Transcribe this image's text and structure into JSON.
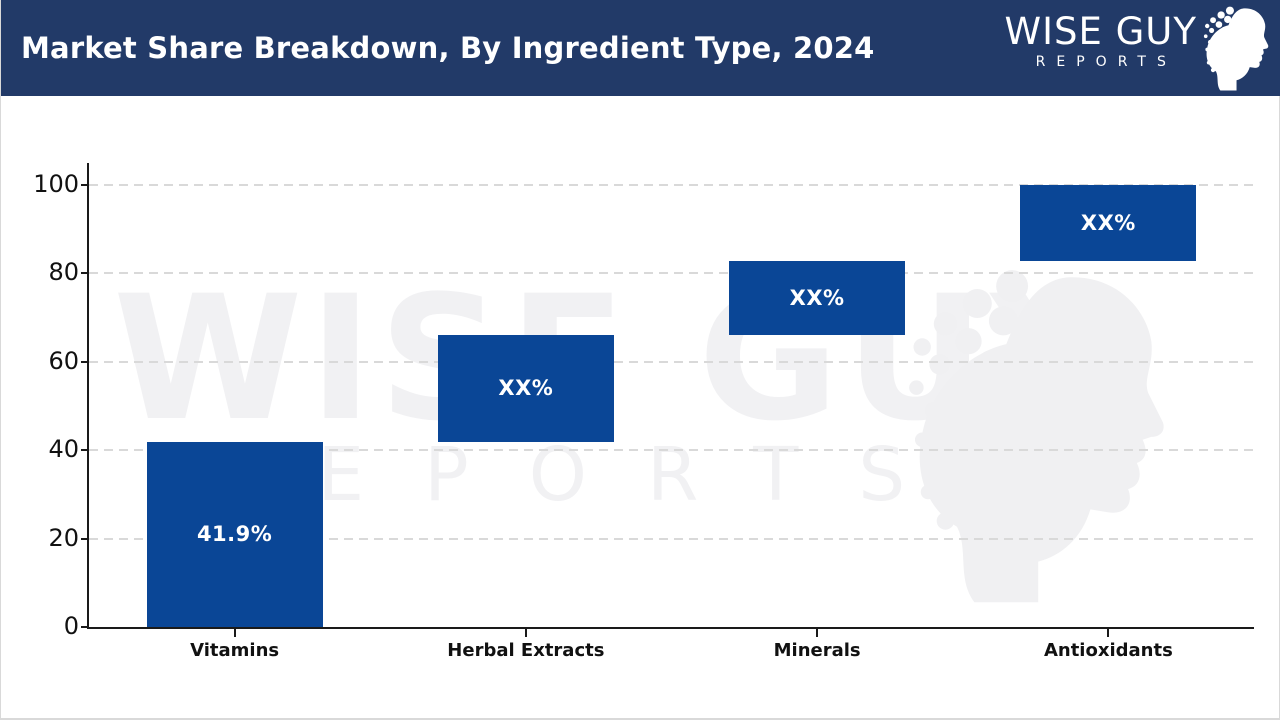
{
  "page": {
    "background": "#ffffff",
    "border_color": "#d9d9d9"
  },
  "header": {
    "background": "#223A68",
    "title": "Market Share Breakdown, By Ingredient Type, 2024",
    "logo": {
      "wordmark": "WISE GUY",
      "subtext": "REPORTS"
    }
  },
  "watermark": {
    "wordmark": "WISE GUY",
    "subtext": "REPORTS",
    "color": "#f1f1f3"
  },
  "chart_data": {
    "type": "bar",
    "subtype": "floating-waterfall-segments",
    "title": "Market Share Breakdown, By Ingredient Type, 2024",
    "categories": [
      "Vitamins",
      "Herbal Extracts",
      "Minerals",
      "Antioxidants"
    ],
    "segments": [
      {
        "category": "Vitamins",
        "start": 0,
        "end": 41.9,
        "label": "41.9%"
      },
      {
        "category": "Herbal Extracts",
        "start": 41.9,
        "end": 66.1,
        "label": "XX%"
      },
      {
        "category": "Minerals",
        "start": 66.1,
        "end": 82.9,
        "label": "XX%"
      },
      {
        "category": "Antioxidants",
        "start": 82.9,
        "end": 100,
        "label": "XX%"
      }
    ],
    "y_ticks": [
      0,
      20,
      40,
      60,
      80,
      100
    ],
    "ylim": [
      0,
      105
    ],
    "xlabel": "",
    "ylabel": "",
    "bar_color": "#0A4696",
    "bar_label_color": "#ffffff",
    "grid": {
      "axis": "y",
      "style": "dashed",
      "color": "#d9d9d9"
    },
    "axis_color": "#1a1a1a",
    "legend": "none"
  }
}
